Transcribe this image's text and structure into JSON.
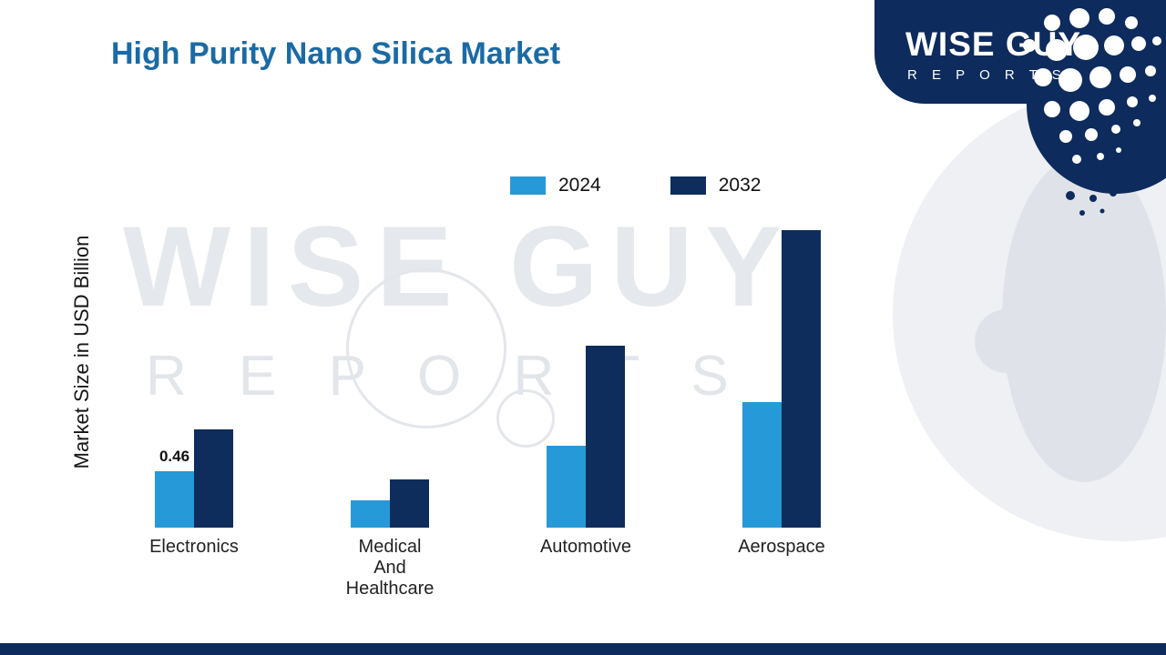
{
  "header": {
    "title": "High Purity Nano Silica Market",
    "title_color": "#1a6aa5"
  },
  "logo": {
    "line1": "WISE GUY",
    "line2": "R E P O R T S"
  },
  "watermark": {
    "line1": "WISE GUY",
    "line2": "R E P O R T S"
  },
  "colors": {
    "navy": "#0d2b5c",
    "light_blue": "#2699d8",
    "background_circle": "#eef0f3"
  },
  "chart_data": {
    "type": "bar",
    "title": "High Purity Nano Silica Market",
    "ylabel": "Market Size in USD Billion",
    "categories": [
      "Electronics",
      "Medical\nAnd\nHealthcare",
      "Automotive",
      "Aerospace"
    ],
    "series": [
      {
        "name": "2024",
        "color": "#2699d8",
        "values": [
          0.46,
          0.22,
          0.67,
          1.02
        ]
      },
      {
        "name": "2032",
        "color": "#0e2d5c",
        "values": [
          0.8,
          0.39,
          1.48,
          2.42
        ]
      }
    ],
    "value_labels": [
      {
        "category": 0,
        "series": 0,
        "text": "0.46"
      }
    ],
    "ylim": [
      0,
      2.6
    ],
    "grid": false,
    "legend_position": "top"
  }
}
